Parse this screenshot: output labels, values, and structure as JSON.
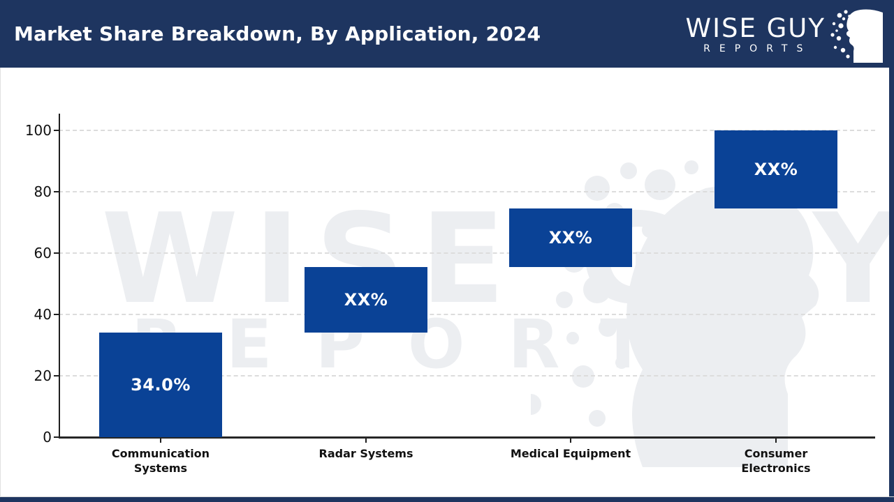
{
  "header": {
    "title": "Market Share Breakdown, By Application, 2024",
    "logo": {
      "name_top": "WISE GUY",
      "name_bottom": "REPORTS"
    }
  },
  "watermark": {
    "line1": "WISE GUY",
    "line2": "REPORTS"
  },
  "chart_data": {
    "type": "bar",
    "subtype": "waterfall",
    "title": "Market Share Breakdown, By Application, 2024",
    "xlabel": "",
    "ylabel": "",
    "ylim": [
      0,
      105
    ],
    "yticks": [
      0,
      20,
      40,
      60,
      80,
      100
    ],
    "grid": "horizontal dashed",
    "legend": "none",
    "bar_color": "#0a4296",
    "categories": [
      "Communication Systems",
      "Radar Systems",
      "Medical Equipment",
      "Consumer Electronics"
    ],
    "category_label_lines": [
      [
        "Communication",
        "Systems"
      ],
      [
        "Radar Systems"
      ],
      [
        "Medical Equipment"
      ],
      [
        "Consumer",
        "Electronics"
      ]
    ],
    "segments": [
      {
        "category": "Communication Systems",
        "start": 0,
        "end": 34,
        "label": "34.0%"
      },
      {
        "category": "Radar Systems",
        "start": 34,
        "end": 55.5,
        "label": "XX%"
      },
      {
        "category": "Medical Equipment",
        "start": 55.5,
        "end": 74.5,
        "label": "XX%"
      },
      {
        "category": "Consumer Electronics",
        "start": 74.5,
        "end": 100,
        "label": "XX%"
      }
    ]
  },
  "colors": {
    "header_bg": "#1e3560",
    "bar": "#0a4296",
    "grid": "#dcdcdc",
    "axis": "#1f1f1f",
    "watermark": "#eceef1"
  }
}
